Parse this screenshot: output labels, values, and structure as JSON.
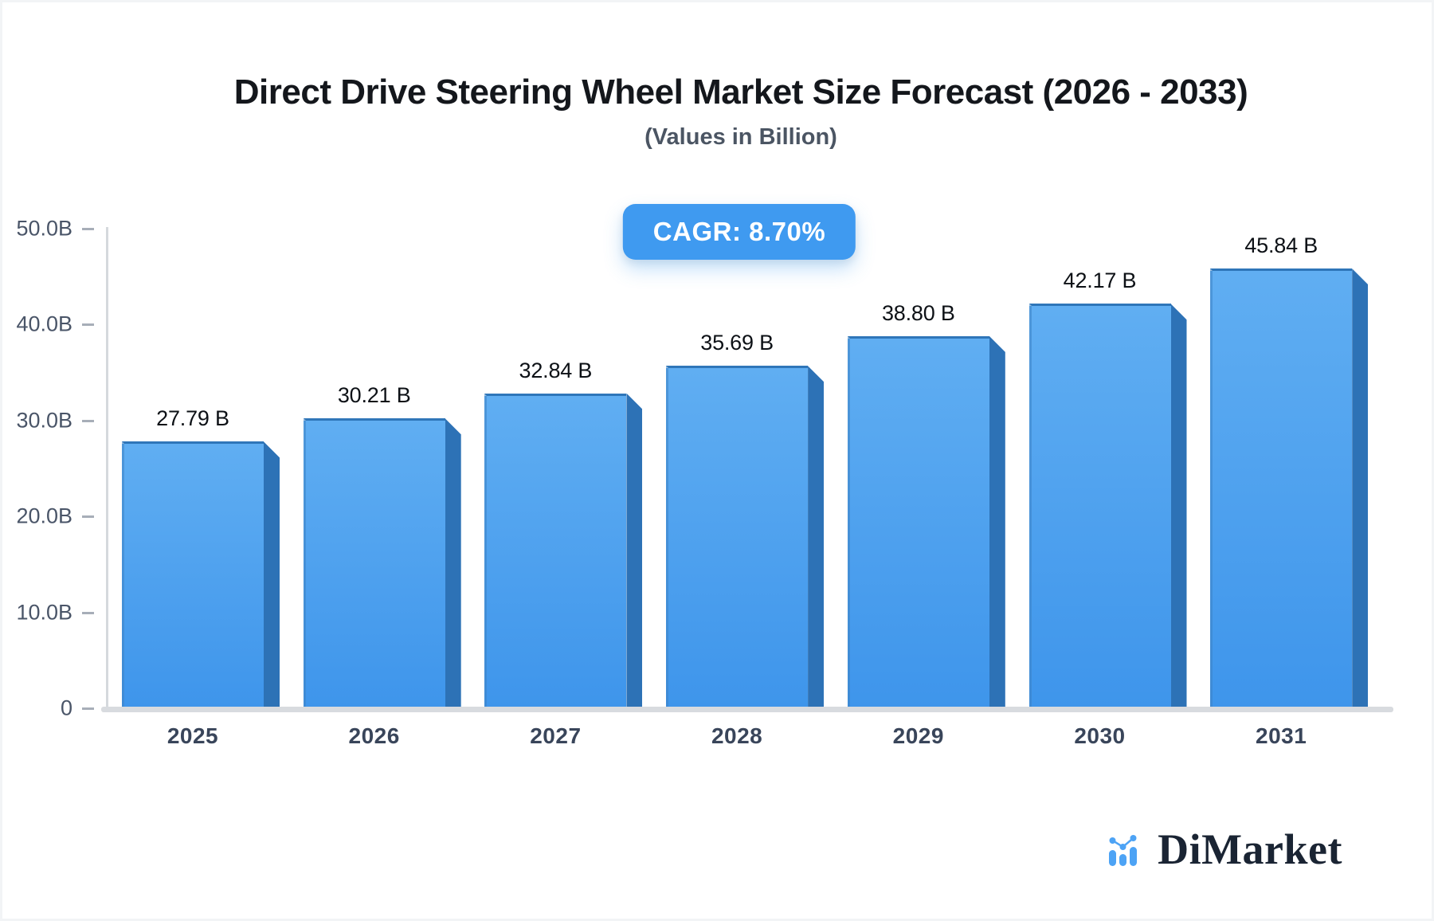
{
  "header": {
    "title": "Direct Drive Steering Wheel Market Size Forecast (2026 - 2033)",
    "subtitle": "(Values in Billion)"
  },
  "badge": {
    "label": "CAGR: 8.70%",
    "background": "#3f9af0",
    "text_color": "#ffffff"
  },
  "chart_data": {
    "type": "bar",
    "title": "Direct Drive Steering Wheel Market Size Forecast (2026 - 2033)",
    "subtitle": "(Values in Billion)",
    "categories": [
      "2025",
      "2026",
      "2027",
      "2028",
      "2029",
      "2030",
      "2031"
    ],
    "values": [
      27.79,
      30.21,
      32.84,
      35.69,
      38.8,
      42.17,
      45.84
    ],
    "value_labels": [
      "27.79 B",
      "30.21 B",
      "32.84 B",
      "35.69 B",
      "38.80 B",
      "42.17 B",
      "45.84 B"
    ],
    "xlabel": "",
    "ylabel": "",
    "ylim": [
      0,
      50
    ],
    "yticks": {
      "values": [
        50,
        40,
        30,
        20,
        10,
        0
      ],
      "labels": [
        "50.0B",
        "40.0B",
        "30.0B",
        "20.0B",
        "10.0B",
        "0"
      ]
    },
    "grid": false,
    "legend": false,
    "bar_style": {
      "face_gradient_top": "#60aef2",
      "face_gradient_bottom": "#3e95eb",
      "face_top_edge": "#2f76b9",
      "side_panel": "#2d72b6",
      "effect": "3d-side-extrusion-right"
    }
  },
  "logo": {
    "text": "DiMarket",
    "icon": "mini-bar-line-chart-icon",
    "text_color": "#1a2433",
    "accent": "#4da3f5"
  }
}
